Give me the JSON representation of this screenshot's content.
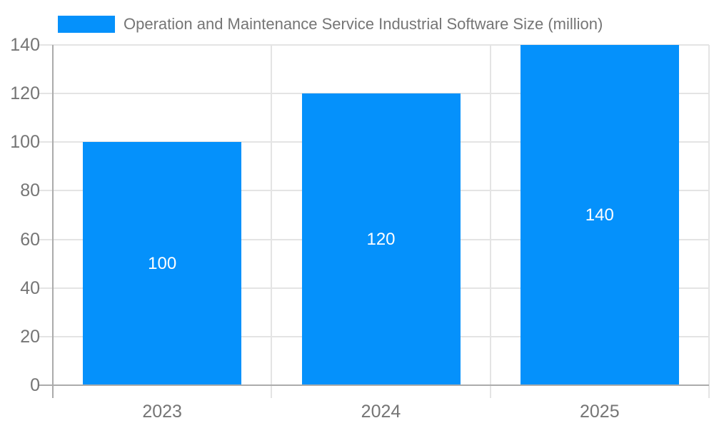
{
  "legend": {
    "label": "Operation and Maintenance Service Industrial Software Size (million)"
  },
  "chart_data": {
    "type": "bar",
    "title": "Operation and Maintenance Service Industrial Software Size (million)",
    "categories": [
      "2023",
      "2024",
      "2025"
    ],
    "series": [
      {
        "name": "Operation and Maintenance Service Industrial Software Size (million)",
        "values": [
          100,
          120,
          140
        ]
      }
    ],
    "data_labels": [
      "100",
      "120",
      "140"
    ],
    "xlabel": "",
    "ylabel": "",
    "ylim": [
      0,
      140
    ],
    "yticks": [
      0,
      20,
      40,
      60,
      80,
      100,
      120,
      140
    ],
    "grid": true,
    "legend_position": "top",
    "colors": {
      "bar": "#0591FB",
      "data_label": "#FFFFFF",
      "axis_text": "#757575",
      "gridline": "#E4E4E4",
      "axis_line": "#ABABAB",
      "background": "#FFFFFF"
    }
  }
}
